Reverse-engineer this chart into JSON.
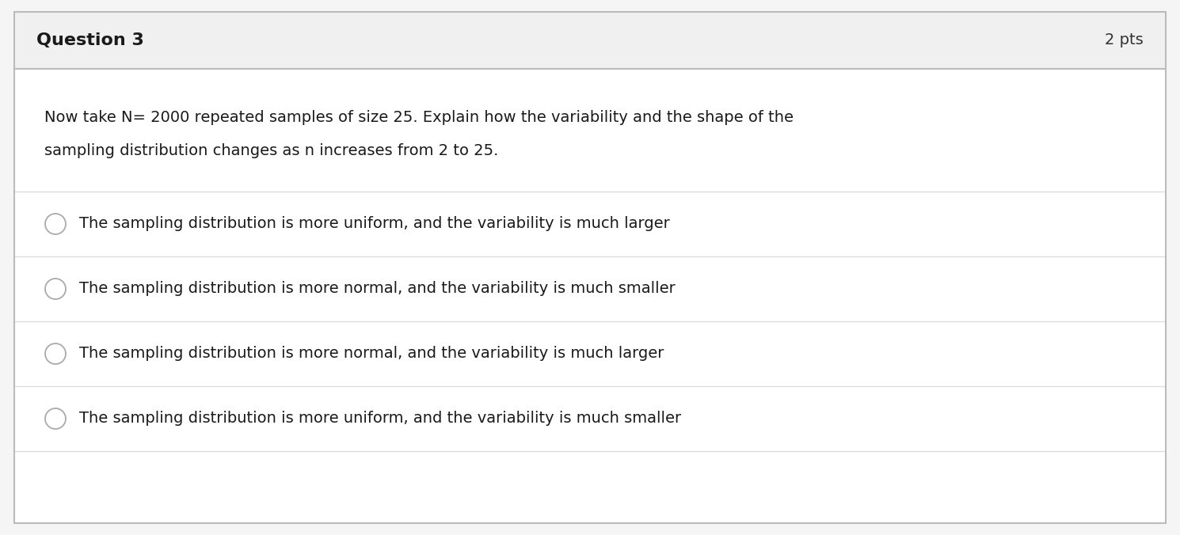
{
  "title": "Question 3",
  "pts": "2 pts",
  "question_text_line1": "Now take N= 2000 repeated samples of size 25. Explain how the variability and the shape of the",
  "question_text_line2": "sampling distribution changes as n increases from 2 to 25.",
  "options": [
    "The sampling distribution is more uniform, and the variability is much larger",
    "The sampling distribution is more normal, and the variability is much smaller",
    "The sampling distribution is more normal, and the variability is much larger",
    "The sampling distribution is more uniform, and the variability is much smaller"
  ],
  "header_bg": "#f0f0f0",
  "body_bg": "#ffffff",
  "outer_bg": "#f5f5f5",
  "border_color": "#bbbbbb",
  "header_text_color": "#1a1a1a",
  "pts_text_color": "#333333",
  "question_text_color": "#1a1a1a",
  "option_text_color": "#1a1a1a",
  "divider_color": "#dddddd",
  "circle_edge_color": "#aaaaaa",
  "header_font_size": 16,
  "pts_font_size": 14,
  "question_font_size": 14,
  "option_font_size": 14,
  "fig_width": 14.9,
  "fig_height": 6.76,
  "dpi": 100
}
